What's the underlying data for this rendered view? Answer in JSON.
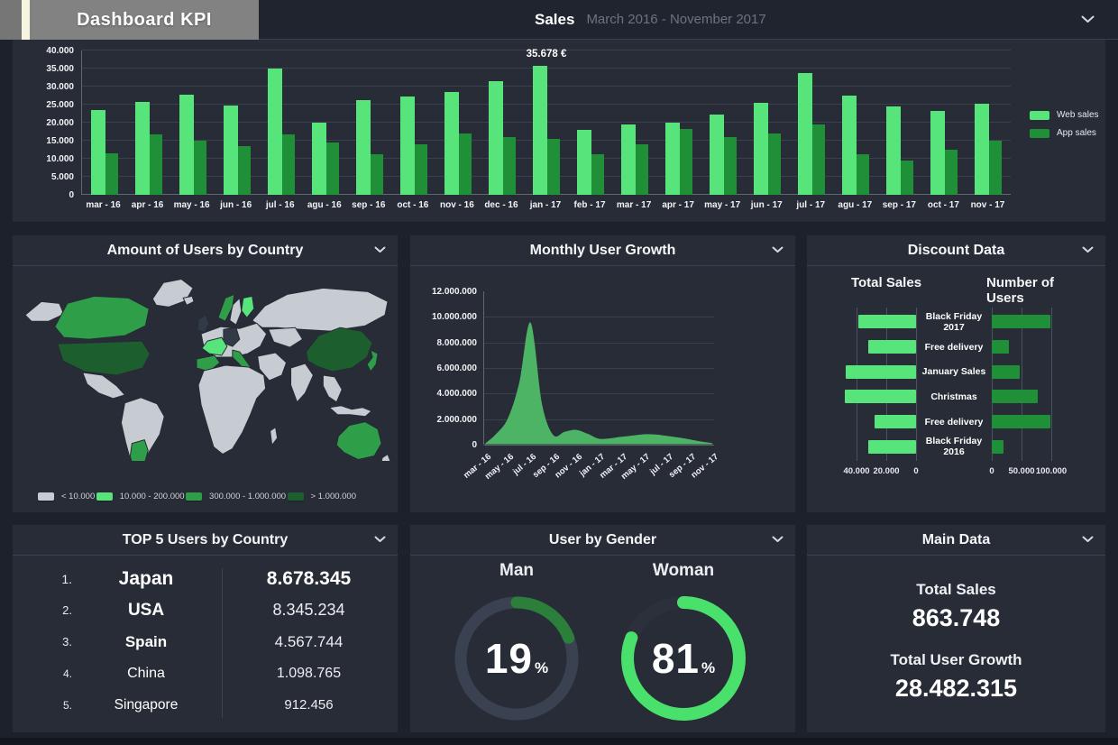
{
  "header": {
    "app_title": "Dashboard KPI"
  },
  "colors": {
    "page_bg": "#1d212b",
    "panel_bg": "#272c37",
    "brand_gray": "#828282",
    "brand_stripe": "#f7f4df",
    "web_green": "#57e57b",
    "app_green": "#1f9038",
    "area_green": "#4db365",
    "map_no_data": "#323947",
    "donut_man_arc": "#2b7f3b",
    "donut_man_ring": "#3a4150",
    "donut_woman_arc": "#4ae06c",
    "donut_woman_ring": "#2b303a"
  },
  "chart_data": [
    {
      "id": "sales",
      "type": "bar",
      "title": "Sales",
      "subtitle": "March 2016 - November 2017",
      "categories": [
        "mar - 16",
        "apr - 16",
        "may - 16",
        "jun - 16",
        "jul - 16",
        "agu - 16",
        "sep - 16",
        "oct - 16",
        "nov - 16",
        "dec - 16",
        "jan - 17",
        "feb - 17",
        "mar - 17",
        "apr - 17",
        "may - 17",
        "jun - 17",
        "jul - 17",
        "agu - 17",
        "sep - 17",
        "oct - 17",
        "nov - 17"
      ],
      "series": [
        {
          "name": "Web sales",
          "color": "#57e57b",
          "values": [
            23500,
            25700,
            27800,
            24800,
            35000,
            20000,
            26300,
            27300,
            28400,
            31600,
            35678,
            18100,
            19400,
            20100,
            22300,
            25600,
            33800,
            27600,
            24600,
            23300,
            25300
          ]
        },
        {
          "name": "App sales",
          "color": "#1f9038",
          "values": [
            11500,
            16700,
            15000,
            13500,
            16800,
            14500,
            11200,
            14000,
            17100,
            15900,
            15500,
            11200,
            14000,
            18300,
            16100,
            17100,
            19400,
            11200,
            9400,
            12400,
            14900
          ]
        }
      ],
      "ylim": [
        0,
        40000
      ],
      "ytick_labels": [
        "0",
        "5.000",
        "10.000",
        "15.000",
        "20.000",
        "25.000",
        "30.000",
        "35.000",
        "40.000"
      ],
      "annotation": {
        "category": "jan - 17",
        "series": "Web sales",
        "text": "35.678 €"
      },
      "grid": true,
      "legend_position": "right"
    },
    {
      "id": "users_map",
      "type": "choropleth",
      "title": "Amount of Users by Country",
      "legend": [
        {
          "label": "< 10.000",
          "color": "#c7ccd2"
        },
        {
          "label": "10.000 - 200.000",
          "color": "#57e57b"
        },
        {
          "label": "300.000 - 1.000.000",
          "color": "#2f9e48"
        },
        {
          "label": "> 1.000.000",
          "color": "#1d5e2e"
        }
      ],
      "country_levels": {
        "usa": 3,
        "china": 3,
        "canada": 2,
        "argentina": 2,
        "australia": 2,
        "italy": 2,
        "norway": 2,
        "spain": 2,
        "japan": 2,
        "france": 1,
        "finland": 1
      },
      "no_data_countries": [
        "uk",
        "germany"
      ]
    },
    {
      "id": "growth",
      "type": "area",
      "title": "Monthly User Growth",
      "x": [
        "mar - 16",
        "apr - 16",
        "may - 16",
        "jun - 16",
        "jul - 16",
        "agu - 16",
        "sep - 16",
        "oct - 16",
        "nov - 16",
        "dec - 16",
        "jan - 17",
        "feb - 17",
        "mar - 17",
        "apr - 17",
        "may - 17",
        "jun - 17",
        "jul - 17",
        "agu - 17",
        "sep - 17",
        "oct - 17",
        "nov - 17"
      ],
      "values": [
        0,
        800000,
        2000000,
        4800000,
        9600000,
        3200000,
        700000,
        950000,
        1100000,
        800000,
        400000,
        430000,
        550000,
        650000,
        750000,
        730000,
        620000,
        500000,
        350000,
        180000,
        50000
      ],
      "xtick_labels": [
        "mar - 16",
        "may - 16",
        "jul - 16",
        "sep - 16",
        "nov - 16",
        "jan - 17",
        "mar - 17",
        "may - 17",
        "jul - 17",
        "sep - 17",
        "nov - 17"
      ],
      "ylim": [
        0,
        12000000
      ],
      "ytick_labels": [
        "0",
        "2.000.000",
        "4.000.000",
        "6.000.000",
        "8.000.000",
        "10.000.000",
        "12.000.000"
      ],
      "color": "#4db365",
      "grid": true
    },
    {
      "id": "discount",
      "type": "butterfly-bar",
      "title": "Discount Data",
      "left_title": "Total Sales",
      "right_title": "Number of Users",
      "categories": [
        "Black Friday 2017",
        "Free delivery",
        "January Sales",
        "Christmas",
        "Free delivery",
        "Black Friday 2016"
      ],
      "left_values": [
        39000,
        32000,
        47000,
        48000,
        28000,
        32000
      ],
      "right_values": [
        98000,
        29000,
        46500,
        77000,
        99000,
        19000
      ],
      "left_color": "#57e57b",
      "right_color": "#1f9038",
      "left_tick_labels": [
        "40.000",
        "20.000",
        "0"
      ],
      "left_tick_values": [
        40000,
        20000,
        0
      ],
      "right_tick_labels": [
        "0",
        "50.000",
        "100.000"
      ],
      "right_tick_values": [
        0,
        50000,
        100000
      ]
    },
    {
      "id": "top5",
      "type": "table",
      "title": "TOP 5 Users by Country",
      "rows": [
        {
          "rank": "1.",
          "country": "Japan",
          "value": "8.678.345"
        },
        {
          "rank": "2.",
          "country": "USA",
          "value": "8.345.234"
        },
        {
          "rank": "3.",
          "country": "Spain",
          "value": "4.567.744"
        },
        {
          "rank": "4.",
          "country": "China",
          "value": "1.098.765"
        },
        {
          "rank": "5.",
          "country": "Singapore",
          "value": "912.456"
        }
      ]
    },
    {
      "id": "gender",
      "type": "donut",
      "title": "User by Gender",
      "items": [
        {
          "label": "Man",
          "pct": 19,
          "value_text": "19",
          "unit": "%",
          "arc_color": "#2b7f3b",
          "ring_color": "#3a4150"
        },
        {
          "label": "Woman",
          "pct": 81,
          "value_text": "81",
          "unit": "%",
          "arc_color": "#4ae06c",
          "ring_color": "#2b303a"
        }
      ]
    },
    {
      "id": "main",
      "type": "kpi",
      "title": "Main Data",
      "items": [
        {
          "label": "Total Sales",
          "value": "863.748"
        },
        {
          "label": "Total User Growth",
          "value": "28.482.315"
        }
      ]
    }
  ]
}
